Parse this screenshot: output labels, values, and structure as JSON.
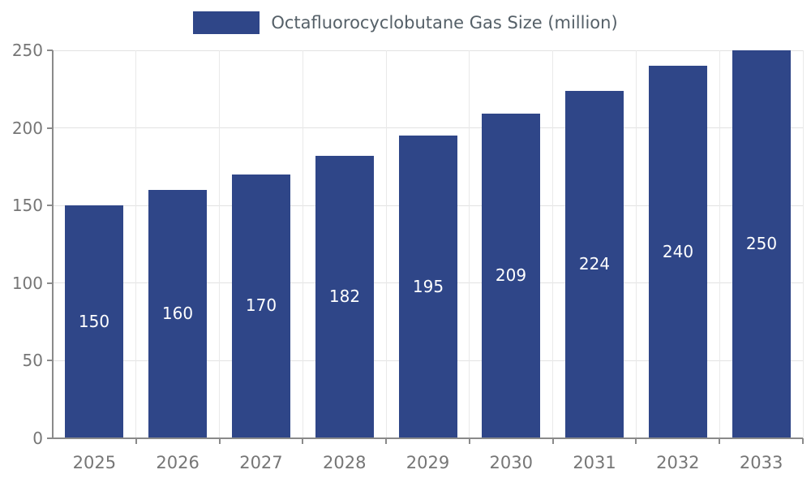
{
  "legend": {
    "label": "Octafluorocyclobutane Gas Size (million)"
  },
  "colors": {
    "bar": "#2f4688",
    "axis": "#8a8a8a",
    "grid_h": "#e2e2e2",
    "grid_v": "#e9e9e9",
    "tick_text": "#767676",
    "value_label": "#ffffff"
  },
  "chart_data": {
    "type": "bar",
    "title": "Octafluorocyclobutane Gas Size (million)",
    "categories": [
      "2025",
      "2026",
      "2027",
      "2028",
      "2029",
      "2030",
      "2031",
      "2032",
      "2033"
    ],
    "values": [
      150,
      160,
      170,
      182,
      195,
      209,
      224,
      240,
      250
    ],
    "xlabel": "",
    "ylabel": "",
    "ylim": [
      0,
      250
    ],
    "yticks": [
      0,
      50,
      100,
      150,
      200,
      250
    ],
    "grid": true,
    "legend_position": "top",
    "value_labels": "inside-center"
  }
}
